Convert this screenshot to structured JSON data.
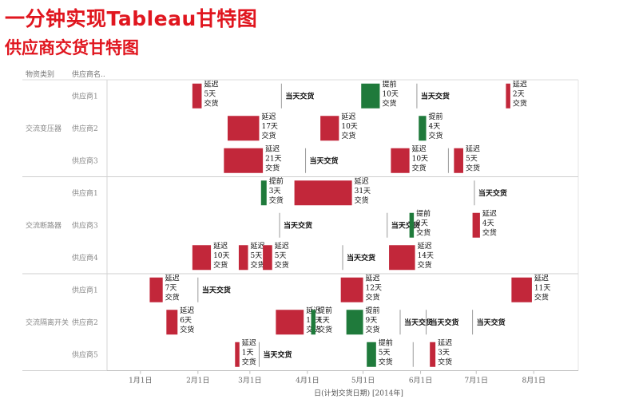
{
  "page": {
    "title": "一分钟实现Tableau甘特图",
    "subtitle": "供应商交货甘特图"
  },
  "chart_data": {
    "type": "gantt",
    "columns": [
      "物资类别",
      "供应商名.."
    ],
    "xlabel": "日(计划交货日期) [2014年]",
    "x_ticks": [
      "1月1日",
      "2月1日",
      "3月1日",
      "4月1日",
      "5月1日",
      "6月1日",
      "7月1日",
      "8月1日"
    ],
    "xlim": [
      "2013-12-14",
      "2014-08-25"
    ],
    "colors": {
      "delay": "#c2273a",
      "early": "#1f7a3b",
      "ontime": "#9a9a9a"
    },
    "categories": [
      {
        "name": "交流变压器",
        "suppliers": [
          "供应商1",
          "供应商2",
          "供应商3"
        ]
      },
      {
        "name": "交流断路器",
        "suppliers": [
          "供应商1",
          "供应商3",
          "供应商4"
        ]
      },
      {
        "name": "交流隔离开关",
        "suppliers": [
          "供应商1",
          "供应商2",
          "供应商5"
        ]
      }
    ],
    "tasks": [
      {
        "row": 0,
        "start": "2014-01-29",
        "days": 5,
        "type": "delay",
        "label": [
          "延迟",
          "5天",
          "交货"
        ]
      },
      {
        "row": 0,
        "start": "2014-03-18",
        "days": 0,
        "type": "ontime",
        "label": [
          "当天交货"
        ]
      },
      {
        "row": 0,
        "start": "2014-04-30",
        "days": 10,
        "type": "early",
        "label": [
          "提前",
          "10天",
          "交货"
        ]
      },
      {
        "row": 0,
        "start": "2014-05-30",
        "days": 0,
        "type": "ontime",
        "label": [
          "当天交货"
        ]
      },
      {
        "row": 0,
        "start": "2014-07-17",
        "days": 2,
        "type": "delay",
        "label": [
          "延迟",
          "2天",
          "交货"
        ]
      },
      {
        "row": 1,
        "start": "2014-02-17",
        "days": 17,
        "type": "delay",
        "label": [
          "延迟",
          "17天",
          "交货"
        ]
      },
      {
        "row": 1,
        "start": "2014-04-08",
        "days": 10,
        "type": "delay",
        "label": [
          "延迟",
          "10天",
          "交货"
        ]
      },
      {
        "row": 1,
        "start": "2014-05-31",
        "days": 4,
        "type": "early",
        "label": [
          "提前",
          "4天",
          "交货"
        ]
      },
      {
        "row": 2,
        "start": "2014-02-15",
        "days": 21,
        "type": "delay",
        "label": [
          "延迟",
          "21天",
          "交货"
        ]
      },
      {
        "row": 2,
        "start": "2014-03-31",
        "days": 0,
        "type": "ontime",
        "label": [
          "当天交货"
        ]
      },
      {
        "row": 2,
        "start": "2014-05-16",
        "days": 10,
        "type": "delay",
        "label": [
          "延迟",
          "10天",
          "交货"
        ]
      },
      {
        "row": 2,
        "start": "2014-06-16",
        "days": 0,
        "type": "ontime",
        "label": []
      },
      {
        "row": 2,
        "start": "2014-06-19",
        "days": 5,
        "type": "delay",
        "label": [
          "延迟",
          "5天",
          "交货"
        ]
      },
      {
        "row": 3,
        "start": "2014-03-07",
        "days": 3,
        "type": "early",
        "label": [
          "提前",
          "3天",
          "交货"
        ]
      },
      {
        "row": 3,
        "start": "2014-03-25",
        "days": 31,
        "type": "delay",
        "label": [
          "延迟",
          "31天",
          "交货"
        ]
      },
      {
        "row": 3,
        "start": "2014-06-30",
        "days": 0,
        "type": "ontime",
        "label": [
          "当天交货"
        ]
      },
      {
        "row": 4,
        "start": "2014-03-17",
        "days": 0,
        "type": "ontime",
        "label": [
          "当天交货"
        ]
      },
      {
        "row": 4,
        "start": "2014-05-14",
        "days": 0,
        "type": "ontime",
        "label": [
          "当天交货"
        ]
      },
      {
        "row": 4,
        "start": "2014-05-26",
        "days": 2,
        "type": "early",
        "label": [
          "提前",
          "2天",
          "交货"
        ]
      },
      {
        "row": 4,
        "start": "2014-06-29",
        "days": 4,
        "type": "delay",
        "label": [
          "延迟",
          "4天",
          "交货"
        ]
      },
      {
        "row": 5,
        "start": "2014-01-29",
        "days": 10,
        "type": "delay",
        "label": [
          "延迟",
          "10天",
          "交货"
        ]
      },
      {
        "row": 5,
        "start": "2014-02-23",
        "days": 5,
        "type": "delay",
        "label": [
          "延迟",
          "5天",
          "交货"
        ]
      },
      {
        "row": 5,
        "start": "2014-03-08",
        "days": 5,
        "type": "delay",
        "label": [
          "延迟",
          "5天",
          "交货"
        ]
      },
      {
        "row": 5,
        "start": "2014-04-20",
        "days": 0,
        "type": "ontime",
        "label": [
          "当天交货"
        ]
      },
      {
        "row": 5,
        "start": "2014-05-15",
        "days": 14,
        "type": "delay",
        "label": [
          "延迟",
          "14天",
          "交货"
        ]
      },
      {
        "row": 6,
        "start": "2014-01-06",
        "days": 7,
        "type": "delay",
        "label": [
          "延迟",
          "7天",
          "交货"
        ]
      },
      {
        "row": 6,
        "start": "2014-02-01",
        "days": 0,
        "type": "ontime",
        "label": [
          "当天交货"
        ]
      },
      {
        "row": 6,
        "start": "2014-04-19",
        "days": 12,
        "type": "delay",
        "label": [
          "延迟",
          "12天",
          "交货"
        ]
      },
      {
        "row": 6,
        "start": "2014-07-20",
        "days": 11,
        "type": "delay",
        "label": [
          "延迟",
          "11天",
          "交货"
        ]
      },
      {
        "row": 7,
        "start": "2014-01-15",
        "days": 6,
        "type": "delay",
        "label": [
          "延迟",
          "6天",
          "交货"
        ]
      },
      {
        "row": 7,
        "start": "2014-03-15",
        "days": 15,
        "type": "delay",
        "label": [
          "延迟",
          "15天",
          "交货"
        ]
      },
      {
        "row": 7,
        "start": "2014-04-03",
        "days": 1,
        "type": "early",
        "label": [
          "提前",
          "1天",
          "交货"
        ]
      },
      {
        "row": 7,
        "start": "2014-04-22",
        "days": 9,
        "type": "early",
        "label": [
          "提前",
          "9天",
          "交货"
        ]
      },
      {
        "row": 7,
        "start": "2014-05-21",
        "days": 0,
        "type": "ontime",
        "label": [
          "当天交货"
        ]
      },
      {
        "row": 7,
        "start": "2014-06-04",
        "days": 0,
        "type": "ontime",
        "label": [
          "当天交货"
        ]
      },
      {
        "row": 7,
        "start": "2014-06-29",
        "days": 0,
        "type": "ontime",
        "label": [
          "当天交货"
        ]
      },
      {
        "row": 8,
        "start": "2014-02-21",
        "days": 1,
        "type": "delay",
        "label": [
          "延迟",
          "1天",
          "交货"
        ]
      },
      {
        "row": 8,
        "start": "2014-03-06",
        "days": 0,
        "type": "ontime",
        "label": [
          "当天交货"
        ]
      },
      {
        "row": 8,
        "start": "2014-05-03",
        "days": 5,
        "type": "early",
        "label": [
          "提前",
          "5天",
          "交货"
        ]
      },
      {
        "row": 8,
        "start": "2014-05-28",
        "days": 0,
        "type": "ontime",
        "label": []
      },
      {
        "row": 8,
        "start": "2014-06-06",
        "days": 3,
        "type": "delay",
        "label": [
          "延迟",
          "3天",
          "交货"
        ]
      }
    ]
  }
}
